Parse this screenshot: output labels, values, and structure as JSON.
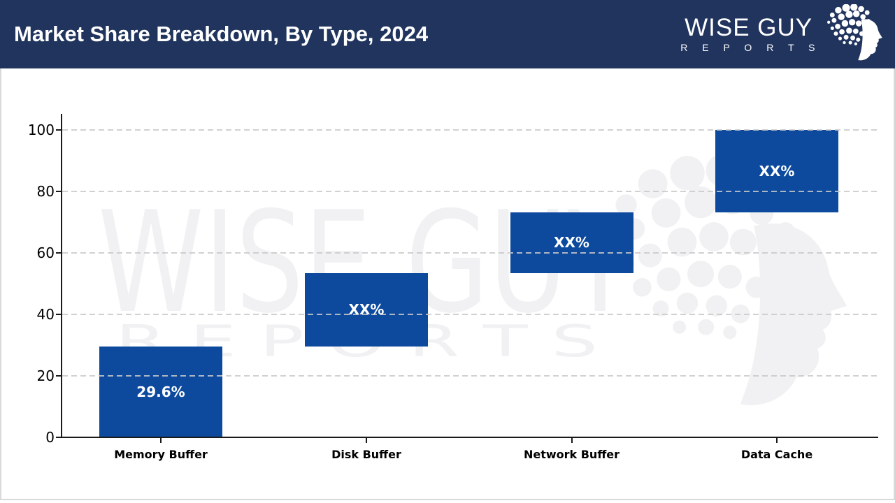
{
  "header": {
    "title": "Market Share Breakdown, By Type, 2024",
    "logo": {
      "line1": "WISE GUY",
      "line2": "R E P O R T S"
    }
  },
  "watermark": {
    "line1": "WISE GUY",
    "line2": "R E P O R T S"
  },
  "chart_data": {
    "type": "bar",
    "subtype": "waterfall",
    "title": "Market Share Breakdown, By Type, 2024",
    "categories": [
      "Memory Buffer",
      "Disk Buffer",
      "Network Buffer",
      "Data Cache"
    ],
    "segments": [
      {
        "category": "Memory Buffer",
        "start": 0,
        "end": 29.6,
        "label": "29.6%"
      },
      {
        "category": "Disk Buffer",
        "start": 29.6,
        "end": 53.4,
        "label": "XX%"
      },
      {
        "category": "Network Buffer",
        "start": 53.4,
        "end": 73.2,
        "label": "XX%"
      },
      {
        "category": "Data Cache",
        "start": 73.2,
        "end": 100,
        "label": "XX%"
      }
    ],
    "yticks": [
      0,
      20,
      40,
      60,
      80,
      100
    ],
    "ylim": [
      0,
      105
    ],
    "xlabel": "",
    "ylabel": "",
    "grid": "horizontal dashed gridlines drawn over bars",
    "legend": "none",
    "bar_color": "#0D4A9E",
    "bar_label_color": "#FFFFFF"
  },
  "colors": {
    "header_bg": "#20345E",
    "bar": "#0D4A9E",
    "watermark": "#F1F1F3",
    "axis": "#1A1A1A",
    "grid": "#C9C9C9",
    "content_border": "#D9D9D9"
  }
}
